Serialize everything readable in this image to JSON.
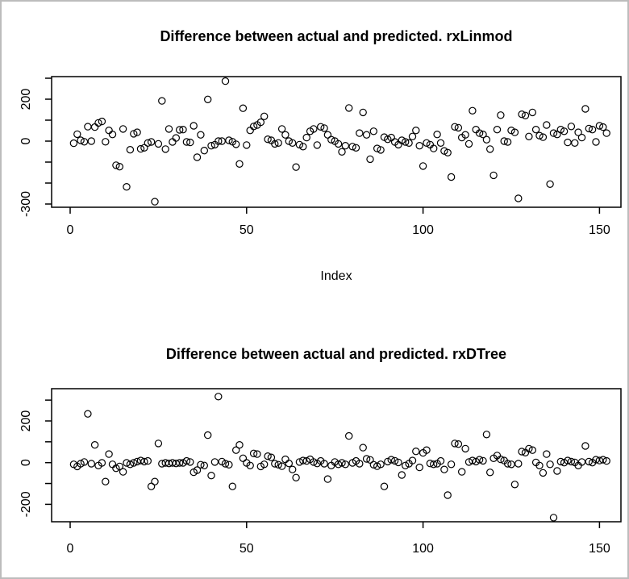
{
  "window": {
    "background": "#ffffff",
    "border_color": "#bcbcbc",
    "foreground": "#000000"
  },
  "chart_data": [
    {
      "type": "scatter",
      "title": "Difference between actual and predicted. rxLinmod",
      "xlabel": "Index",
      "ylabel": "",
      "x_start": 1,
      "x_count": 152,
      "xlim": [
        -5.3,
        156.1
      ],
      "ylim": [
        -315,
        307
      ],
      "x_ticks": [
        0,
        50,
        100,
        150
      ],
      "x_tick_labels": [
        "0",
        "50",
        "100",
        "150"
      ],
      "y_ticks": [
        300,
        200,
        100,
        0,
        -100,
        -200,
        -300
      ],
      "y_tick_labels": [
        "",
        "200",
        "",
        "0",
        "",
        "",
        "-300"
      ],
      "grid": false,
      "legend": null,
      "marker": "open-circle",
      "values": [
        -10,
        33,
        4,
        -3,
        69,
        0,
        67,
        87,
        94,
        -3,
        51,
        32,
        -115,
        -122,
        58,
        -218,
        -41,
        35,
        42,
        -37,
        -32,
        -9,
        -4,
        -289,
        -13,
        192,
        -38,
        58,
        -4,
        15,
        54,
        55,
        -4,
        -6,
        73,
        -77,
        30,
        -45,
        199,
        -22,
        -17,
        0,
        0,
        286,
        4,
        -3,
        -15,
        -109,
        157,
        -19,
        51,
        70,
        77,
        90,
        118,
        9,
        4,
        -13,
        -9,
        58,
        30,
        0,
        -9,
        -124,
        -17,
        -26,
        17,
        47,
        58,
        -19,
        68,
        62,
        30,
        7,
        0,
        -13,
        -51,
        -22,
        158,
        -26,
        -32,
        38,
        137,
        30,
        -86,
        47,
        -35,
        -42,
        19,
        9,
        17,
        -4,
        -17,
        4,
        -4,
        -9,
        22,
        51,
        -22,
        -119,
        -9,
        -17,
        -35,
        32,
        -9,
        -47,
        -55,
        -171,
        68,
        64,
        17,
        30,
        -13,
        145,
        55,
        38,
        32,
        7,
        -38,
        -163,
        55,
        124,
        0,
        -4,
        51,
        42,
        -273,
        128,
        122,
        22,
        137,
        55,
        26,
        19,
        77,
        -205,
        38,
        32,
        55,
        47,
        -6,
        70,
        -9,
        42,
        17,
        154,
        60,
        55,
        -4,
        73,
        67,
        38
      ]
    },
    {
      "type": "scatter",
      "title": "Difference between actual and predicted. rxDTree",
      "xlabel": "",
      "ylabel": "",
      "x_start": 1,
      "x_count": 152,
      "xlim": [
        -5.3,
        156.1
      ],
      "ylim": [
        -283,
        355
      ],
      "x_ticks": [
        0,
        50,
        100,
        150
      ],
      "x_tick_labels": [
        "0",
        "50",
        "100",
        "150"
      ],
      "y_ticks": [
        300,
        200,
        100,
        0,
        -100,
        -200
      ],
      "y_tick_labels": [
        "",
        "200",
        "",
        "0",
        "",
        "-200"
      ],
      "grid": false,
      "legend": null,
      "marker": "open-circle",
      "values": [
        -8,
        -18,
        -5,
        3,
        234,
        -5,
        85,
        -14,
        -1,
        -91,
        41,
        -8,
        -27,
        -18,
        -44,
        -1,
        -8,
        -1,
        5,
        10,
        5,
        8,
        -114,
        -91,
        92,
        -5,
        -1,
        -4,
        -1,
        -4,
        -1,
        -1,
        8,
        3,
        -46,
        -36,
        -10,
        -14,
        132,
        -62,
        3,
        317,
        5,
        -5,
        -10,
        -114,
        60,
        85,
        21,
        -1,
        -14,
        44,
        41,
        -18,
        -8,
        31,
        25,
        -5,
        -10,
        -17,
        16,
        -4,
        -33,
        -72,
        3,
        10,
        8,
        16,
        3,
        -4,
        8,
        -5,
        -79,
        -14,
        3,
        -8,
        -1,
        -8,
        128,
        -1,
        8,
        -5,
        72,
        18,
        13,
        -10,
        -17,
        -8,
        -114,
        5,
        14,
        9,
        1,
        -59,
        -14,
        -5,
        10,
        54,
        -23,
        47,
        60,
        -4,
        -8,
        -5,
        8,
        -33,
        -156,
        -8,
        92,
        89,
        -44,
        67,
        3,
        10,
        5,
        14,
        9,
        135,
        -47,
        21,
        34,
        16,
        10,
        -5,
        -8,
        -105,
        -5,
        53,
        48,
        67,
        60,
        1,
        -14,
        -49,
        41,
        -8,
        -264,
        -40,
        5,
        0,
        10,
        5,
        1,
        -14,
        3,
        80,
        5,
        0,
        14,
        10,
        14,
        8
      ]
    }
  ]
}
